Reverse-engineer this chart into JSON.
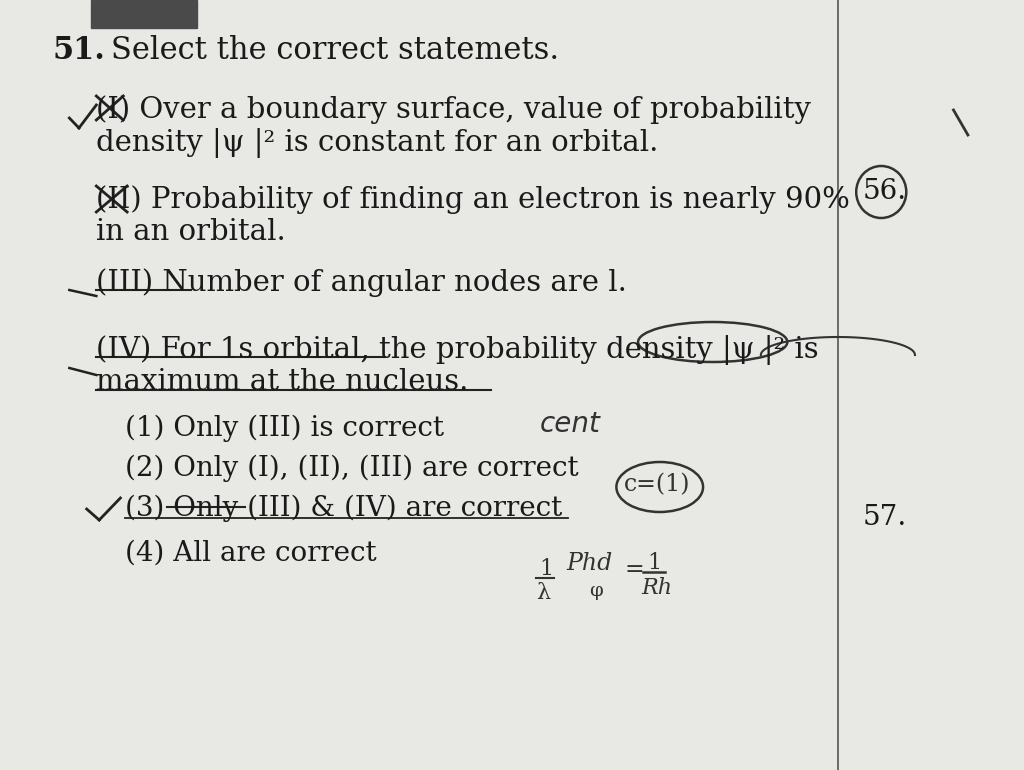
{
  "background_color": "#e8e8e4",
  "page_color": "#e8e8e4",
  "text_color": "#1a1a1a",
  "q_num": "51.",
  "q_text": "Select the correct statemets.",
  "s1_line1": "(I) Over a boundary surface, value of probability",
  "s1_line2": "density |ψ |² is constant for an orbital.",
  "s2_line1": "(II) Probability of finding an electron is nearly 90%",
  "s2_line2": "in an orbital.",
  "s3": "(III) Number of angular nodes are l.",
  "s4_line1": "(IV) For 1s orbital, the probability density |ψ |² is",
  "s4_line2": "maximum at the nucleus.",
  "opt1": "(1) Only (III) is correct",
  "opt2": "(2) Only (I), (II), (III) are correct",
  "opt3": "(3) Only (III) & (IV) are correct",
  "opt4": "(4) All are correct",
  "num56": "56.",
  "num57": "57.",
  "hw_cent": "cent",
  "hw_c1": "c=(1)",
  "dark_block_color": "#4a4a4a"
}
